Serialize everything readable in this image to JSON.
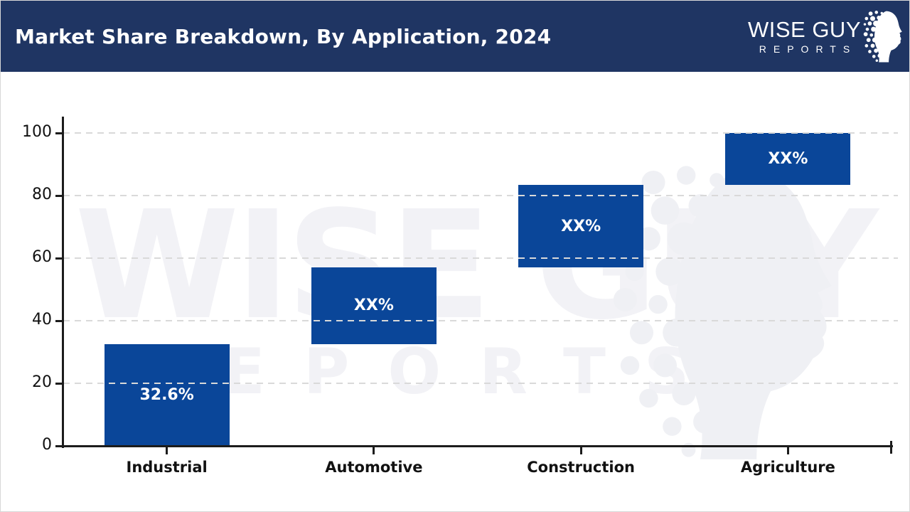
{
  "header": {
    "title": "Market Share Breakdown, By Application, 2024",
    "logo": {
      "line1": "WISE GUY",
      "line2": "REPORTS"
    }
  },
  "watermark": {
    "line1": "WISE GUY",
    "line2": "REPORTS"
  },
  "chart_data": {
    "type": "bar",
    "variant": "waterfall",
    "title": "Market Share Breakdown, By Application, 2024",
    "categories": [
      "Industrial",
      "Automotive",
      "Construction",
      "Agriculture"
    ],
    "segments": [
      {
        "category": "Industrial",
        "start": 0,
        "end": 32.6,
        "label": "32.6%"
      },
      {
        "category": "Automotive",
        "start": 32.6,
        "end": 57.1,
        "label": "XX%"
      },
      {
        "category": "Construction",
        "start": 57.1,
        "end": 83.3,
        "label": "XX%"
      },
      {
        "category": "Agriculture",
        "start": 83.3,
        "end": 100,
        "label": "XX%"
      }
    ],
    "xlabel": "",
    "ylabel": "",
    "ylim": [
      0,
      100
    ],
    "yticks": [
      0,
      20,
      40,
      60,
      80,
      100
    ],
    "grid": {
      "horizontal": true,
      "style": "dashed"
    },
    "legend": "none"
  },
  "colors": {
    "header_bg": "#1f3563",
    "bar": "#0a4699",
    "bar_label": "#ffffff",
    "grid": "#d9d9d9",
    "axis": "#1c1c1c",
    "tick_text": "#111111",
    "watermark": "#f2f2f6"
  }
}
